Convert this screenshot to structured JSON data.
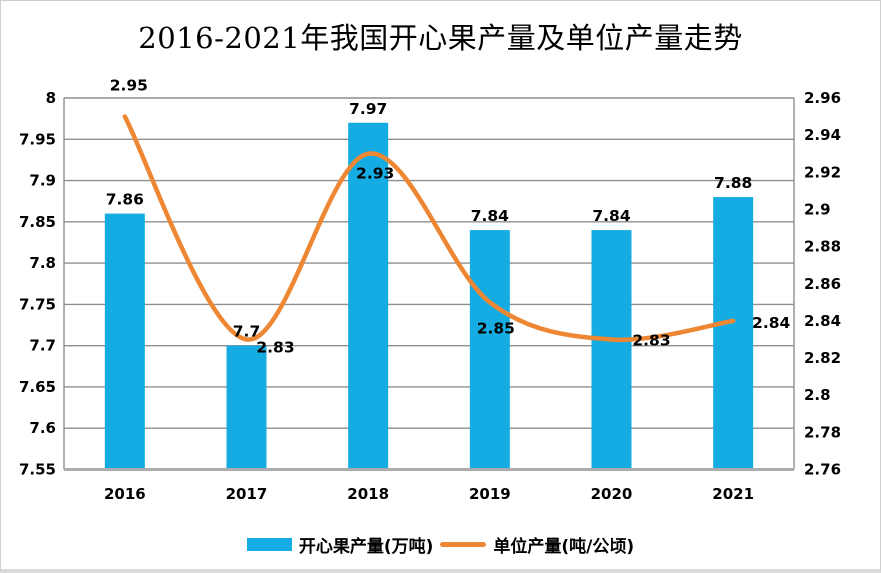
{
  "title": "2016-2021年我国开心果产量及单位产量走势",
  "legend": {
    "bar_label": "开心果产量(万吨)",
    "line_label": "单位产量(吨/公顷)"
  },
  "colors": {
    "bar": "#14ACE3",
    "line": "#ED8733",
    "grid": "#8E8E8E",
    "axis_line": "#ACACAC",
    "text": "#000000"
  },
  "chart_data": {
    "type": "combo",
    "title": "2016-2021年我国开心果产量及单位产量走势",
    "categories": [
      "2016",
      "2017",
      "2018",
      "2019",
      "2020",
      "2021"
    ],
    "series": [
      {
        "name": "开心果产量(万吨)",
        "type": "bar",
        "axis": "left",
        "values": [
          7.86,
          7.7,
          7.97,
          7.84,
          7.84,
          7.88
        ],
        "labels": [
          "7.86",
          "7.7",
          "7.97",
          "7.84",
          "7.84",
          "7.88"
        ]
      },
      {
        "name": "单位产量(吨/公顷)",
        "type": "line",
        "smooth": true,
        "axis": "right",
        "values": [
          2.95,
          2.83,
          2.93,
          2.85,
          2.83,
          2.84
        ],
        "labels": [
          "2.95",
          "2.83",
          "2.93",
          "2.85",
          "2.83",
          "2.84"
        ]
      }
    ],
    "left_axis": {
      "min": 7.55,
      "max": 8.0,
      "step": 0.05,
      "tick_labels": [
        "8",
        "7.95",
        "7.9",
        "7.85",
        "7.8",
        "7.75",
        "7.7",
        "7.65",
        "7.6",
        "7.55"
      ]
    },
    "right_axis": {
      "min": 2.76,
      "max": 2.96,
      "step": 0.02,
      "tick_labels": [
        "2.96",
        "2.94",
        "2.92",
        "2.9",
        "2.88",
        "2.86",
        "2.84",
        "2.82",
        "2.8",
        "2.78",
        "2.76"
      ]
    },
    "grid": true,
    "legend_position": "bottom"
  }
}
